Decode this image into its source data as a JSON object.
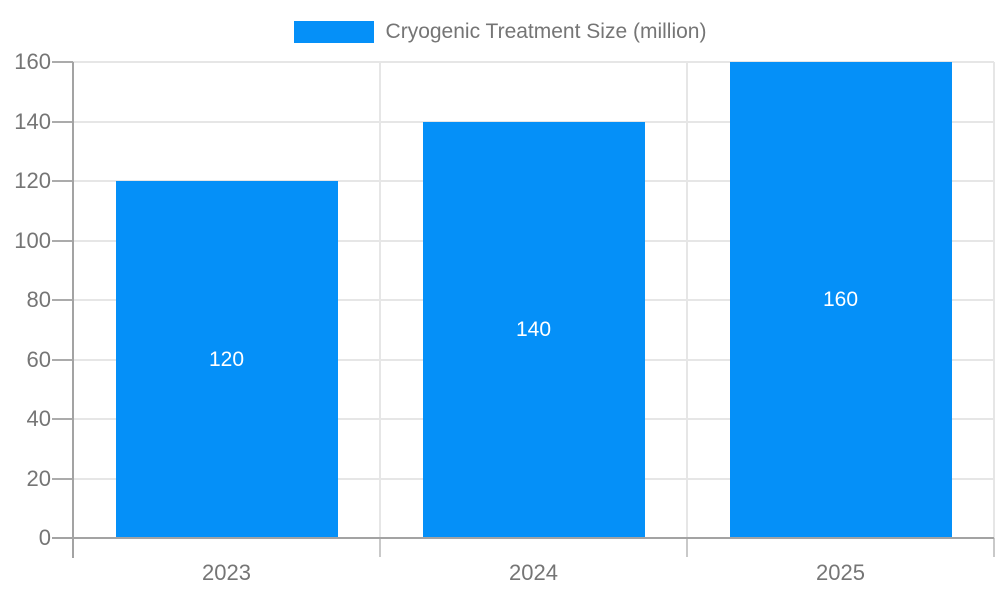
{
  "chart_data": {
    "type": "bar",
    "title": "",
    "categories": [
      "2023",
      "2024",
      "2025"
    ],
    "series": [
      {
        "name": "Cryogenic Treatment Size (million)",
        "values": [
          120,
          140,
          160
        ],
        "color": "#0590f8"
      }
    ],
    "xlabel": "",
    "ylabel": "",
    "ylim": [
      0,
      160
    ],
    "ytick_step": 20,
    "grid": true,
    "legend_position": "top",
    "data_labels": {
      "show": true,
      "position": "center",
      "color": "#ffffff"
    },
    "style": {
      "bar_color": "#0590f8",
      "grid_color": "#e6e6e6",
      "axis_color": "#a3a3a3",
      "y_tick_color": "#ababab",
      "x_tick_color": "#c9c9c9",
      "text_color": "#757575",
      "background": "#ffffff"
    }
  }
}
